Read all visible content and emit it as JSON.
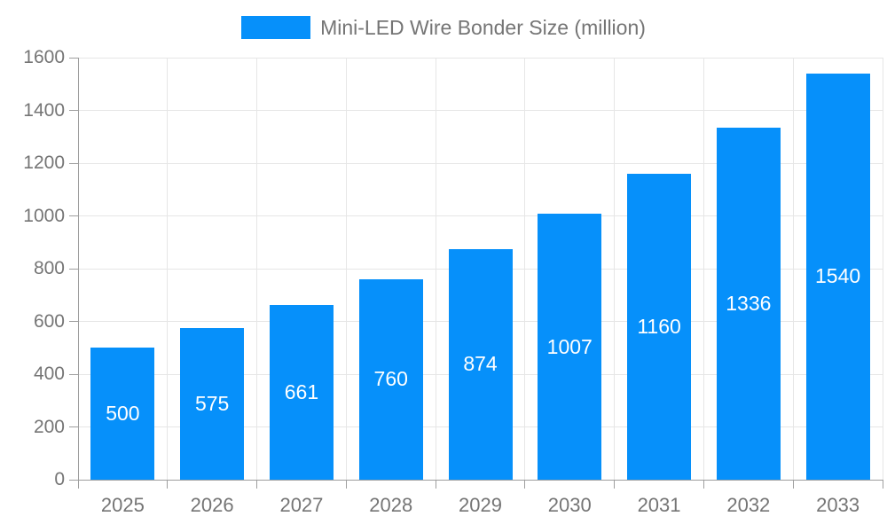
{
  "legend": {
    "label": "Mini-LED Wire Bonder Size (million)"
  },
  "chart_data": {
    "type": "bar",
    "title": "Mini-LED Wire Bonder Size (million)",
    "categories": [
      "2025",
      "2026",
      "2027",
      "2028",
      "2029",
      "2030",
      "2031",
      "2032",
      "2033"
    ],
    "values": [
      500,
      575,
      661,
      760,
      874,
      1007,
      1160,
      1336,
      1540
    ],
    "xlabel": "",
    "ylabel": "",
    "ylim": [
      0,
      1600
    ],
    "yticks": [
      0,
      200,
      400,
      600,
      800,
      1000,
      1200,
      1400,
      1600
    ],
    "grid": true,
    "legend_position": "top",
    "value_labels": "inside-center",
    "bar_color": "#0690fa",
    "colors": {
      "grid": "#e6e6e6",
      "axis": "#9e9e9e",
      "tick_label": "#757575",
      "value_label": "#ffffff",
      "background": "#ffffff"
    }
  }
}
